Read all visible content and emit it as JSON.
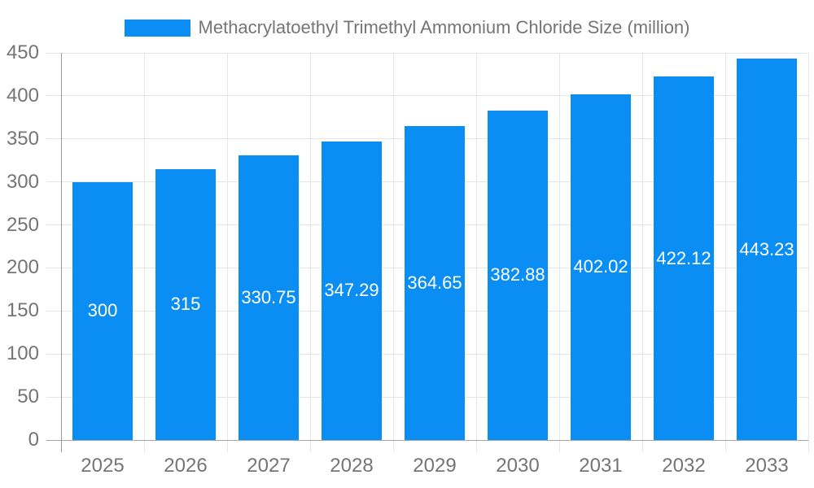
{
  "chart_data": {
    "type": "bar",
    "title": "Methacrylatoethyl Trimethyl Ammonium Chloride Size (million)",
    "legend_position": "top",
    "categories": [
      "2025",
      "2026",
      "2027",
      "2028",
      "2029",
      "2030",
      "2031",
      "2032",
      "2033"
    ],
    "series": [
      {
        "name": "Methacrylatoethyl Trimethyl Ammonium Chloride Size (million)",
        "values": [
          300,
          315,
          330.75,
          347.29,
          364.65,
          382.88,
          402.02,
          422.12,
          443.23
        ]
      }
    ],
    "value_labels": [
      "300",
      "315",
      "330.75",
      "347.29",
      "364.65",
      "382.88",
      "402.02",
      "422.12",
      "443.23"
    ],
    "xlabel": "",
    "ylabel": "",
    "ylim": [
      0,
      450
    ],
    "yticks": [
      0,
      50,
      100,
      150,
      200,
      250,
      300,
      350,
      400,
      450
    ],
    "grid": true,
    "colors": {
      "bar": "#0a8ef4",
      "bar_label": "#ffffff",
      "axis_text": "#757575",
      "grid_line": "#e6e6e6",
      "y_axis_line": "#9b9b9b",
      "x_axis_line": "#a6a6a6"
    }
  }
}
